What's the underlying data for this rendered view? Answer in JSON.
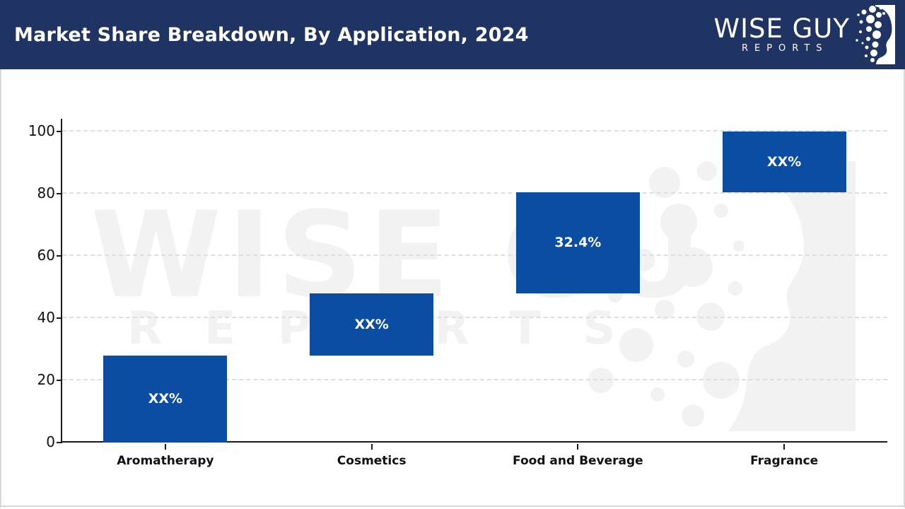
{
  "header": {
    "title": "Market Share Breakdown, By Application, 2024",
    "bg_color": "#203463",
    "logo": {
      "line1": "WISE GUY",
      "line2": "REPORTS"
    }
  },
  "watermark": {
    "line1": "WISE GU",
    "line2": "REPORTS"
  },
  "chart_data": {
    "type": "bar",
    "subtype": "waterfall",
    "title": "Market Share Breakdown, By Application, 2024",
    "categories": [
      "Aromatherapy",
      "Cosmetics",
      "Food and Beverage",
      "Fragrance"
    ],
    "segments": [
      {
        "category": "Aromatherapy",
        "start": 0,
        "end": 28,
        "height": 28,
        "label": "XX%"
      },
      {
        "category": "Cosmetics",
        "start": 28,
        "end": 48,
        "height": 20,
        "label": "XX%"
      },
      {
        "category": "Food and Beverage",
        "start": 48,
        "end": 80.4,
        "height": 32.4,
        "label": "32.4%"
      },
      {
        "category": "Fragrance",
        "start": 80.4,
        "end": 100,
        "height": 19.6,
        "label": "XX%"
      }
    ],
    "xlabel": "",
    "ylabel": "",
    "yticks": [
      0,
      20,
      40,
      60,
      80,
      100
    ],
    "ylim": [
      0,
      103.6
    ],
    "grid": "horizontal-dashed",
    "legend": "none",
    "bar_color": "#0a4da2",
    "bar_label_color": "#ffffff",
    "axis_color": "#1a1a1a",
    "gridline_color": "#dedede",
    "watermark_color": "#f2f2f2"
  }
}
